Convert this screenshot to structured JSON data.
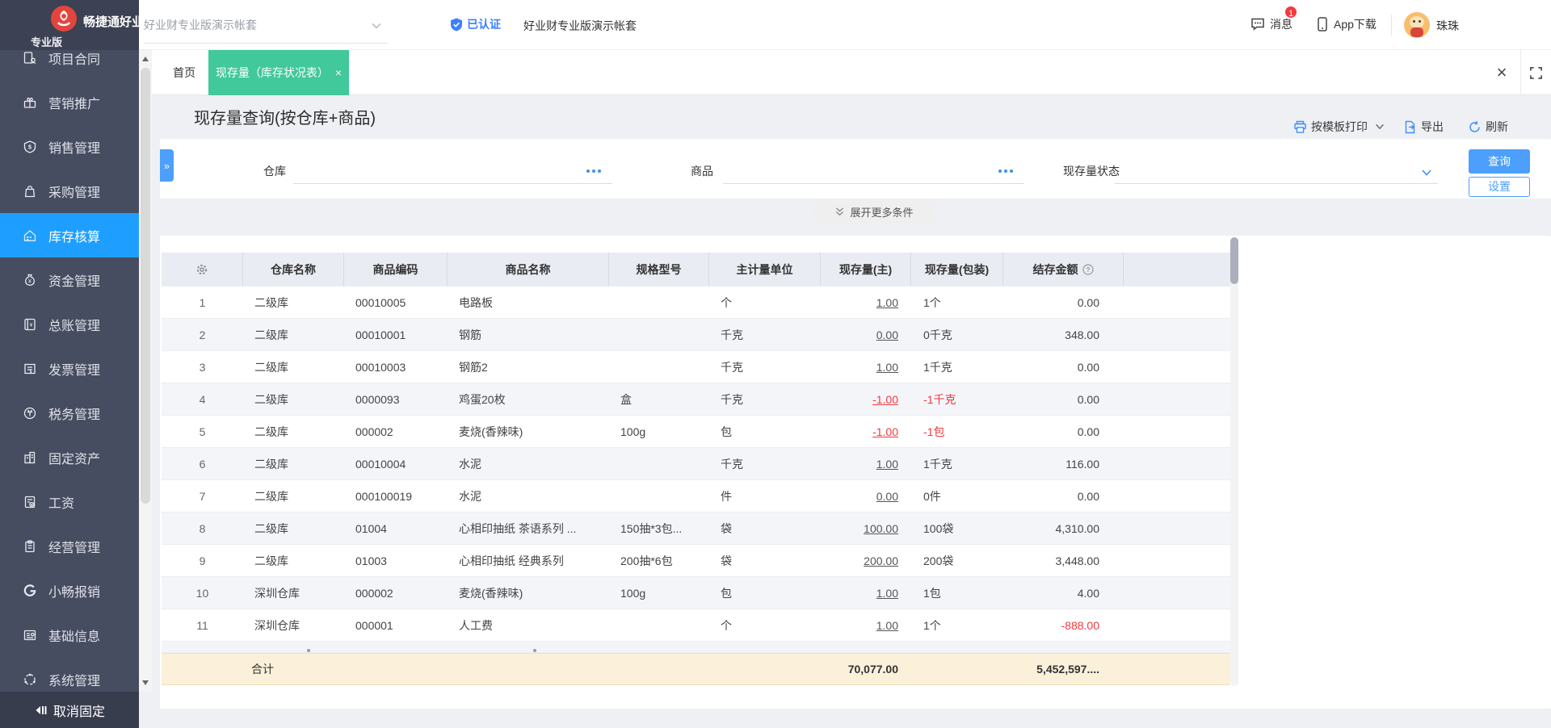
{
  "top_bar": {
    "brand": {
      "name": "畅捷通好业财",
      "edition": "专业版"
    },
    "account_select_value": "好业财专业版演示帐套",
    "verified_label": "已认证",
    "account_name": "好业财专业版演示帐套",
    "messages_label": "消息",
    "messages_badge": "1",
    "app_download_label": "App下载",
    "user_name": "珠珠"
  },
  "sidebar": {
    "items": [
      {
        "label": "项目合同",
        "icon": "contract-icon",
        "active": false
      },
      {
        "label": "营销推广",
        "icon": "gift-icon",
        "active": false
      },
      {
        "label": "销售管理",
        "icon": "sales-icon",
        "active": false
      },
      {
        "label": "采购管理",
        "icon": "purchase-bag-icon",
        "active": false
      },
      {
        "label": "库存核算",
        "icon": "warehouse-icon",
        "active": true
      },
      {
        "label": "资金管理",
        "icon": "money-bag-icon",
        "active": false
      },
      {
        "label": "总账管理",
        "icon": "ledger-icon",
        "active": false
      },
      {
        "label": "发票管理",
        "icon": "invoice-icon",
        "active": false
      },
      {
        "label": "税务管理",
        "icon": "tax-coin-icon",
        "active": false
      },
      {
        "label": "固定资产",
        "icon": "building-icon",
        "active": false
      },
      {
        "label": "工资",
        "icon": "payroll-icon",
        "active": false
      },
      {
        "label": "经营管理",
        "icon": "clipboard-icon",
        "active": false
      },
      {
        "label": "小畅报销",
        "icon": "g-logo-icon",
        "active": false
      },
      {
        "label": "基础信息",
        "icon": "id-card-icon",
        "active": false
      },
      {
        "label": "系统管理",
        "icon": "system-icon",
        "active": false
      }
    ],
    "unpin_label": "取消固定"
  },
  "tabs": {
    "home": "首页",
    "active": "现存量（库存状况表）",
    "close": "×"
  },
  "page": {
    "title": "现存量查询(按仓库+商品)",
    "toolbar": {
      "print": "按模板打印",
      "export": "导出",
      "refresh": "刷新"
    }
  },
  "filters": {
    "warehouse_label": "仓库",
    "product_label": "商品",
    "stock_status_label": "现存量状态",
    "query_button": "查询",
    "settings_button": "设置",
    "expand_more": "展开更多条件",
    "expander_glyph": "»"
  },
  "table": {
    "columns": [
      "仓库名称",
      "商品编码",
      "商品名称",
      "规格型号",
      "主计量单位",
      "现存量(主)",
      "现存量(包装)",
      "结存金额"
    ],
    "rows": [
      {
        "num": "1",
        "warehouse": "二级库",
        "code": "00010005",
        "name": "电路板",
        "spec": "",
        "unit": "个",
        "qtyMain": "1.00",
        "qtyMainNeg": false,
        "qtyPack": "1个",
        "qtyPackNeg": false,
        "amount": "0.00",
        "amountNeg": false
      },
      {
        "num": "2",
        "warehouse": "二级库",
        "code": "00010001",
        "name": "钢筋",
        "spec": "",
        "unit": "千克",
        "qtyMain": "0.00",
        "qtyMainNeg": false,
        "qtyPack": "0千克",
        "qtyPackNeg": false,
        "amount": "348.00",
        "amountNeg": false
      },
      {
        "num": "3",
        "warehouse": "二级库",
        "code": "00010003",
        "name": "钢筋2",
        "spec": "",
        "unit": "千克",
        "qtyMain": "1.00",
        "qtyMainNeg": false,
        "qtyPack": "1千克",
        "qtyPackNeg": false,
        "amount": "0.00",
        "amountNeg": false
      },
      {
        "num": "4",
        "warehouse": "二级库",
        "code": "0000093",
        "name": "鸡蛋20枚",
        "spec": "盒",
        "unit": "千克",
        "qtyMain": "-1.00",
        "qtyMainNeg": true,
        "qtyPack": "-1千克",
        "qtyPackNeg": true,
        "amount": "0.00",
        "amountNeg": false
      },
      {
        "num": "5",
        "warehouse": "二级库",
        "code": "000002",
        "name": "麦烧(香辣味)",
        "spec": "100g",
        "unit": "包",
        "qtyMain": "-1.00",
        "qtyMainNeg": true,
        "qtyPack": "-1包",
        "qtyPackNeg": true,
        "amount": "0.00",
        "amountNeg": false
      },
      {
        "num": "6",
        "warehouse": "二级库",
        "code": "00010004",
        "name": "水泥",
        "spec": "",
        "unit": "千克",
        "qtyMain": "1.00",
        "qtyMainNeg": false,
        "qtyPack": "1千克",
        "qtyPackNeg": false,
        "amount": "116.00",
        "amountNeg": false
      },
      {
        "num": "7",
        "warehouse": "二级库",
        "code": "000100019",
        "name": "水泥",
        "spec": "",
        "unit": "件",
        "qtyMain": "0.00",
        "qtyMainNeg": false,
        "qtyPack": "0件",
        "qtyPackNeg": false,
        "amount": "0.00",
        "amountNeg": false
      },
      {
        "num": "8",
        "warehouse": "二级库",
        "code": "01004",
        "name": "心相印抽纸 茶语系列 ...",
        "spec": "150抽*3包...",
        "unit": "袋",
        "qtyMain": "100.00",
        "qtyMainNeg": false,
        "qtyPack": "100袋",
        "qtyPackNeg": false,
        "amount": "4,310.00",
        "amountNeg": false
      },
      {
        "num": "9",
        "warehouse": "二级库",
        "code": "01003",
        "name": "心相印抽纸 经典系列",
        "spec": "200抽*6包",
        "unit": "袋",
        "qtyMain": "200.00",
        "qtyMainNeg": false,
        "qtyPack": "200袋",
        "qtyPackNeg": false,
        "amount": "3,448.00",
        "amountNeg": false
      },
      {
        "num": "10",
        "warehouse": "深圳仓库",
        "code": "000002",
        "name": "麦烧(香辣味)",
        "spec": "100g",
        "unit": "包",
        "qtyMain": "1.00",
        "qtyMainNeg": false,
        "qtyPack": "1包",
        "qtyPackNeg": false,
        "amount": "4.00",
        "amountNeg": false
      },
      {
        "num": "11",
        "warehouse": "深圳仓库",
        "code": "000001",
        "name": "人工费",
        "spec": "",
        "unit": "个",
        "qtyMain": "1.00",
        "qtyMainNeg": false,
        "qtyPack": "1个",
        "qtyPackNeg": false,
        "amount": "-888.00",
        "amountNeg": true
      }
    ],
    "total": {
      "label": "合计",
      "qty_main_total": "70,077.00",
      "amount_total": "5,452,597...."
    }
  },
  "colors": {
    "sidebar_bg": "#474D60",
    "sidebar_active": "#1E9FFF",
    "active_tab_green": "#41C89B",
    "accent_blue": "#3E8EF7",
    "button_blue": "#4C9FFA",
    "negative_red": "#F5383D",
    "page_bg": "#EEF0F4",
    "table_header_bg": "#EAECF4",
    "stripe_bg": "#F4F5F9",
    "total_row_bg": "#FBF0DA"
  }
}
